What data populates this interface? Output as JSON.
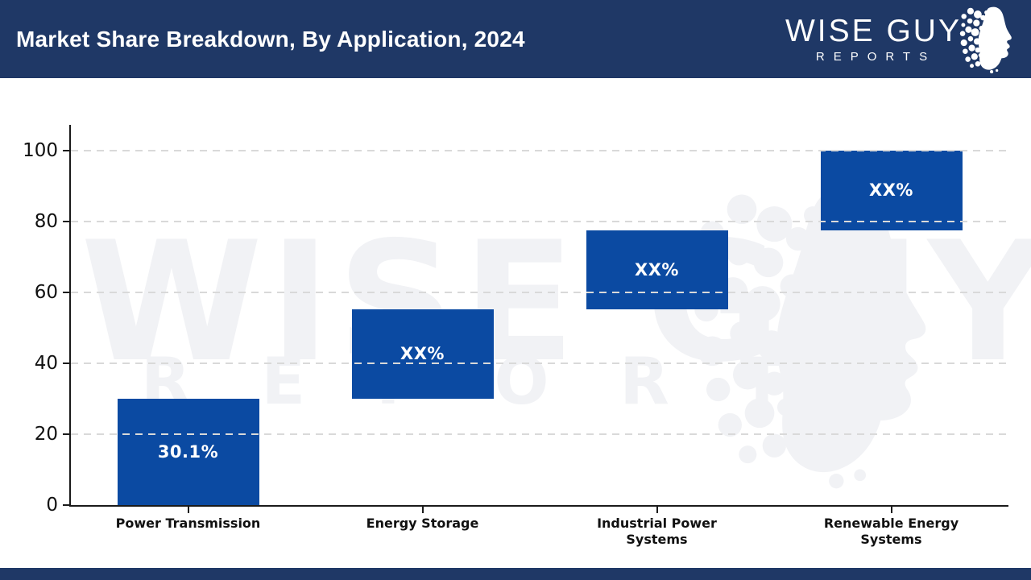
{
  "header": {
    "title": "Market Share Breakdown, By Application, 2024",
    "logo": {
      "primary": "WISE GUY",
      "secondary": "REPORTS"
    }
  },
  "watermark": {
    "primary": "WISE GUY",
    "secondary": "R E P O R T S"
  },
  "colors": {
    "header_bg": "#1f3866",
    "footer_bg": "#1f3866",
    "bar_fill": "#0b4aa2",
    "bar_label_text": "#ffffff",
    "gridline": "#d9d9d9",
    "axis": "#1a1a1a",
    "tick_label": "#111111",
    "watermark_fill": "#f1f2f5"
  },
  "chart_data": {
    "type": "bar",
    "variant": "floating-waterfall",
    "title": "Market Share Breakdown, By Application, 2024",
    "categories": [
      "Power Transmission",
      "Energy Storage",
      "Industrial Power Systems",
      "Renewable Energy Systems"
    ],
    "series": [
      {
        "name": "Market Share (%)",
        "segments": [
          {
            "category": "Power Transmission",
            "start": 0,
            "end": 30.1,
            "label": "30.1%"
          },
          {
            "category": "Energy Storage",
            "start": 30.1,
            "end": 55.3,
            "label": "XX%"
          },
          {
            "category": "Industrial Power Systems",
            "start": 55.3,
            "end": 77.6,
            "label": "XX%"
          },
          {
            "category": "Renewable Energy Systems",
            "start": 77.6,
            "end": 100,
            "label": "XX%"
          }
        ]
      }
    ],
    "xlabel": "",
    "ylabel": "",
    "ylim": [
      0,
      100
    ],
    "yticks": [
      0,
      20,
      40,
      60,
      80,
      100
    ],
    "grid": true,
    "grid_style": "dashed",
    "legend_position": "none"
  }
}
